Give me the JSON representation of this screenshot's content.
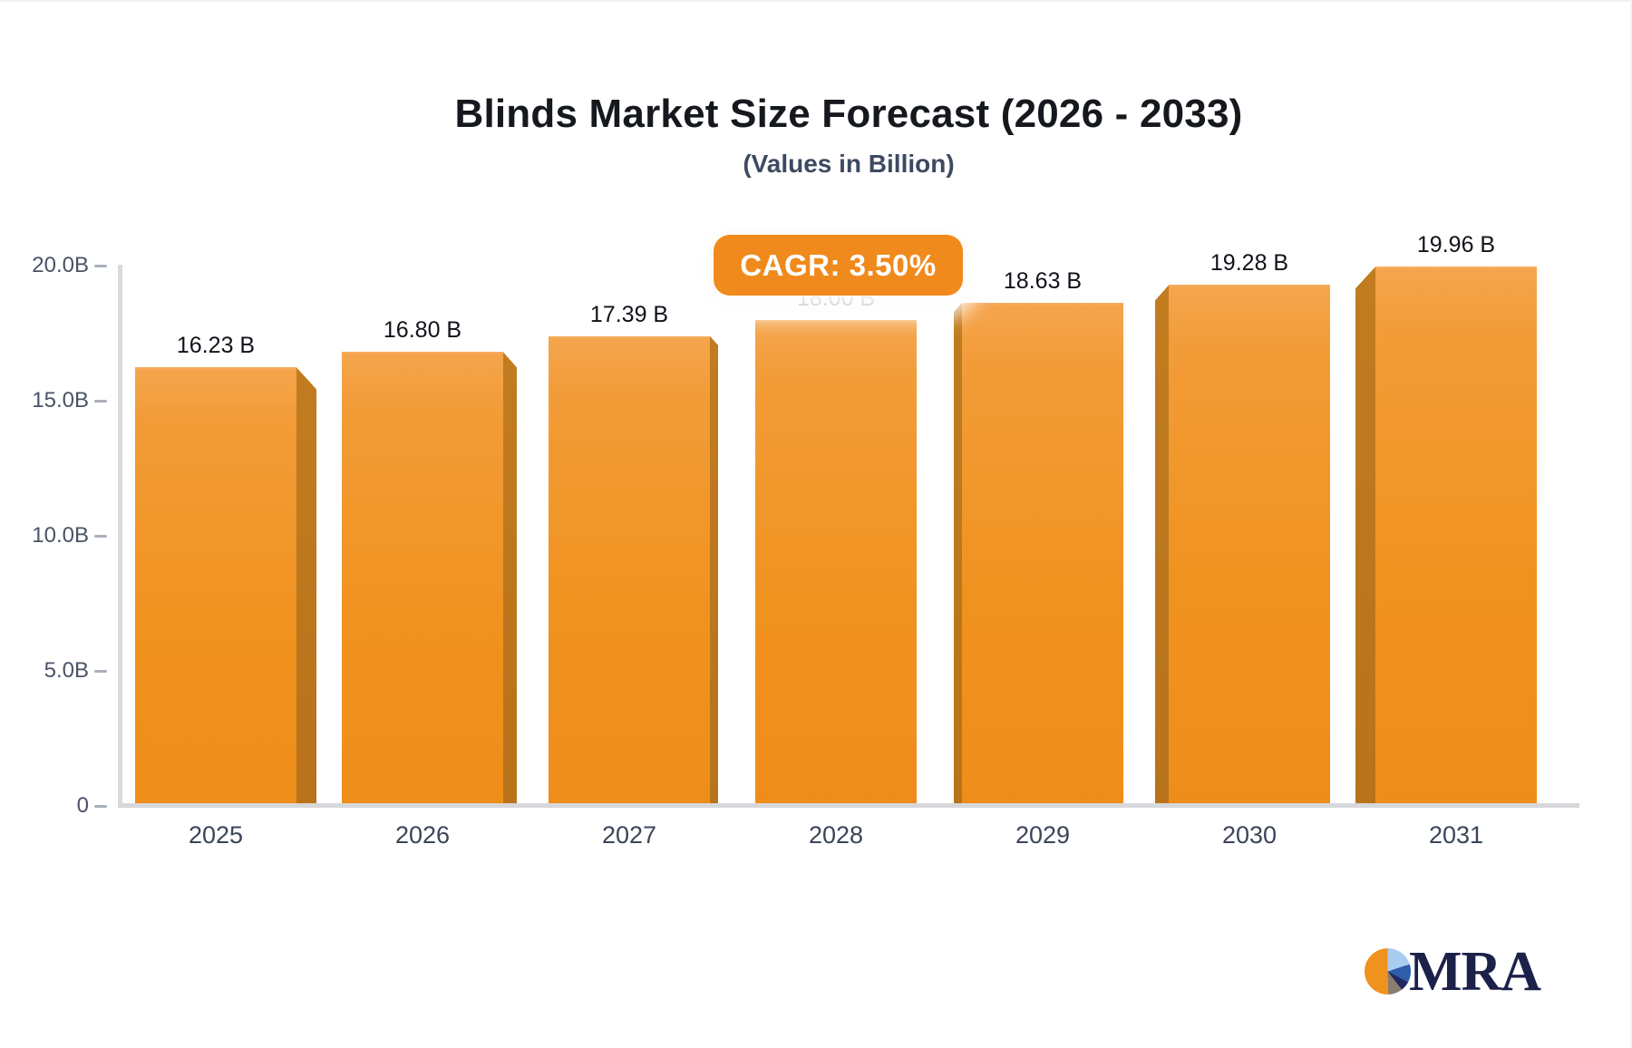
{
  "title": "Blinds Market Size Forecast (2026 - 2033)",
  "subtitle": "(Values in Billion)",
  "cagr_badge": "CAGR: 3.50%",
  "chart_data": {
    "type": "bar",
    "title": "Blinds Market Size Forecast (2026 - 2033)",
    "subtitle": "(Values in Billion)",
    "cagr_label": "CAGR: 3.50%",
    "categories": [
      "2025",
      "2026",
      "2027",
      "2028",
      "2029",
      "2030",
      "2031"
    ],
    "values": [
      16.23,
      16.8,
      17.39,
      18.0,
      18.63,
      19.28,
      19.96
    ],
    "value_labels": [
      "16.23 B",
      "16.80 B",
      "17.39 B",
      "18.00 B",
      "18.63 B",
      "19.28 B",
      "19.96 B"
    ],
    "xlabel": "",
    "ylabel": "",
    "ylim": [
      0,
      20
    ],
    "yticks": [
      {
        "value": 20,
        "label": "20.0B"
      },
      {
        "value": 15,
        "label": "15.0B"
      },
      {
        "value": 10,
        "label": "10.0B"
      },
      {
        "value": 5,
        "label": "5.0B"
      },
      {
        "value": 0,
        "label": "0"
      }
    ],
    "grid": "off",
    "legend": "none",
    "bar_style": "3d-perspective-center",
    "colors": {
      "bar_face_top": "#f5a54d",
      "bar_face_bottom": "#ef8d1a",
      "bar_side": "#b9741c",
      "axis": "#d9dadd",
      "tick_text": "#4a5366",
      "value_text": "#10131a",
      "badge_bg": "#f08a1d",
      "badge_text": "#ffffff"
    }
  },
  "logo": {
    "text": "MRA",
    "icon": "pie-chart-icon",
    "text_color": "#1c2149",
    "pie_colors": [
      "#f0921e",
      "#a8cdf0",
      "#2f5cab",
      "#20295d",
      "#8b7c72"
    ]
  }
}
